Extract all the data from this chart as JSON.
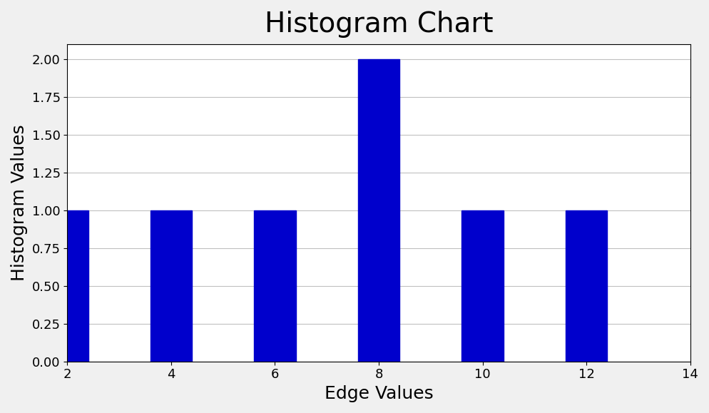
{
  "title": "Histogram Chart",
  "xlabel": "Edge Values",
  "ylabel": "Histogram Values",
  "bar_color": "#0000cc",
  "bin_edges": [
    2,
    4,
    6,
    8,
    10,
    12,
    14
  ],
  "counts": [
    1,
    1,
    1,
    2,
    1,
    1
  ],
  "centers": [
    2,
    4,
    6,
    8,
    10,
    12
  ],
  "bar_width": 0.8,
  "xlim": [
    2,
    14
  ],
  "ylim": [
    0,
    2.1
  ],
  "yticks": [
    0.0,
    0.25,
    0.5,
    0.75,
    1.0,
    1.25,
    1.5,
    1.75,
    2.0
  ],
  "xticks": [
    2,
    4,
    6,
    8,
    10,
    12,
    14
  ],
  "title_fontsize": 28,
  "label_fontsize": 18,
  "tick_fontsize": 13,
  "grid_color": "#c0c0c0",
  "background_color": "#ffffff",
  "figure_bg": "#f0f0f0"
}
